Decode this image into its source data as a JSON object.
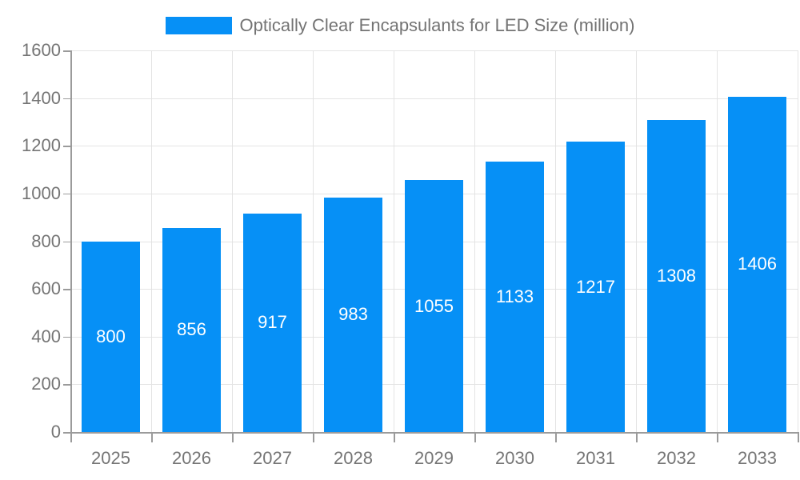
{
  "chart_data": {
    "type": "bar",
    "title": "Optically Clear Encapsulants for LED Size (million)",
    "categories": [
      "2025",
      "2026",
      "2027",
      "2028",
      "2029",
      "2030",
      "2031",
      "2032",
      "2033"
    ],
    "values": [
      800,
      856,
      917,
      983,
      1055,
      1133,
      1217,
      1308,
      1406
    ],
    "value_labels": [
      "800",
      "856",
      "917",
      "983",
      "1055",
      "1133",
      "1217",
      "1308",
      "1406"
    ],
    "xlabel": "",
    "ylabel": "",
    "ylim": [
      0,
      1600
    ],
    "y_ticks": [
      0,
      200,
      400,
      600,
      800,
      1000,
      1200,
      1400,
      1600
    ],
    "y_tick_labels": [
      "0",
      "200",
      "400",
      "600",
      "800",
      "1000",
      "1200",
      "1400",
      "1600"
    ],
    "grid": "on",
    "legend_position": "top-center",
    "value_label_position": "inside-center"
  },
  "colors": {
    "bar": "#0690F6",
    "bar_value_text": "#ffffff",
    "axis_line": "#9b9b9b",
    "gridline": "#e3e3e3",
    "tick_text": "#757575",
    "title_text": "#737373",
    "background": "#ffffff"
  }
}
